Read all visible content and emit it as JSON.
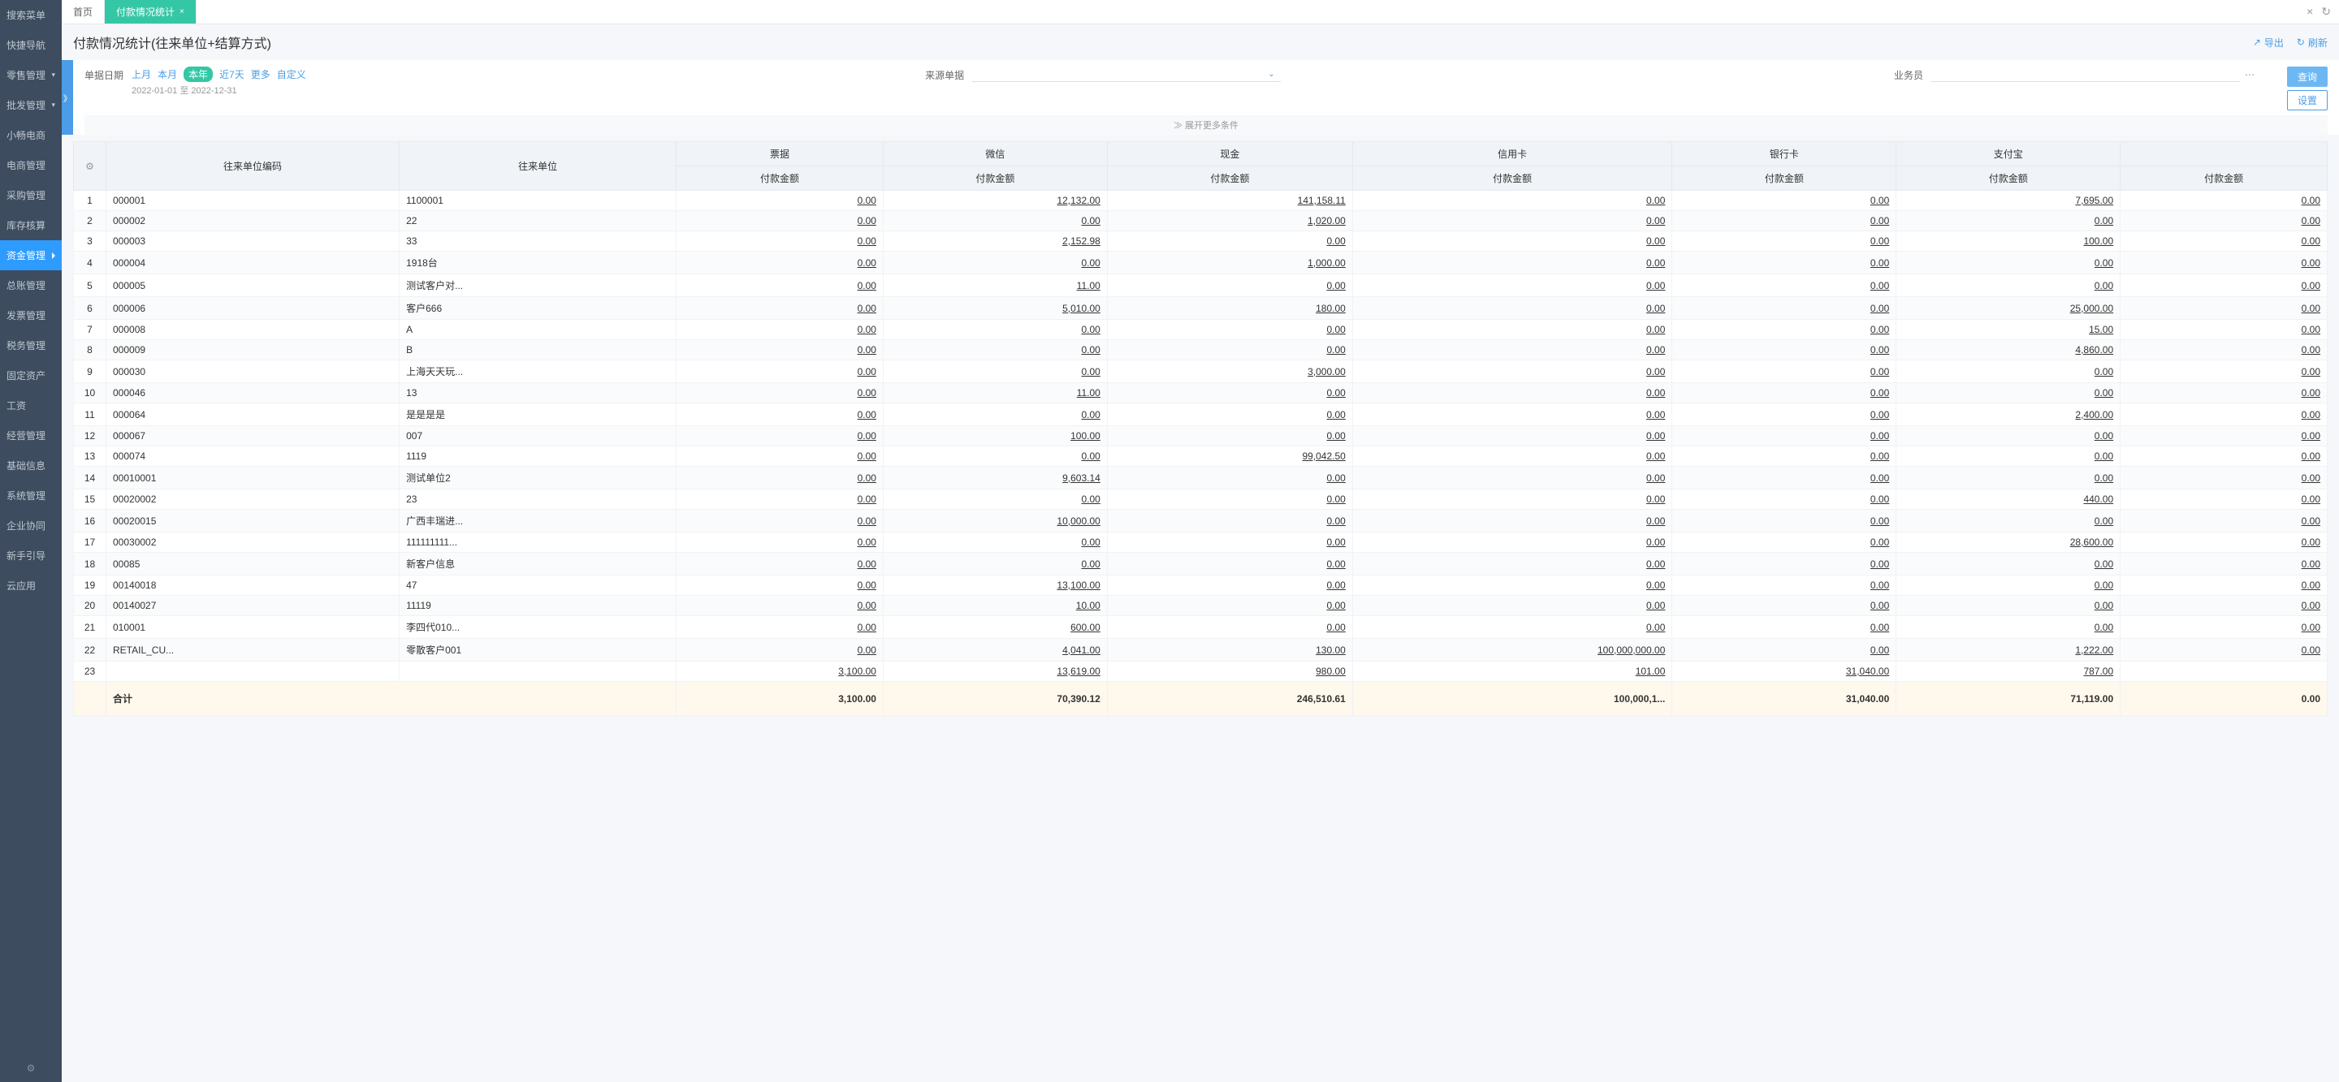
{
  "sidebar": {
    "items": [
      {
        "label": "搜索菜单",
        "arrow": false
      },
      {
        "label": "快捷导航",
        "arrow": false
      },
      {
        "label": "零售管理",
        "arrow": true
      },
      {
        "label": "批发管理",
        "arrow": true
      },
      {
        "label": "小畅电商",
        "arrow": false
      },
      {
        "label": "电商管理",
        "arrow": false
      },
      {
        "label": "采购管理",
        "arrow": false
      },
      {
        "label": "库存核算",
        "arrow": false
      },
      {
        "label": "资金管理",
        "arrow": false,
        "active": true
      },
      {
        "label": "总账管理",
        "arrow": false
      },
      {
        "label": "发票管理",
        "arrow": false
      },
      {
        "label": "税务管理",
        "arrow": false
      },
      {
        "label": "固定资产",
        "arrow": false
      },
      {
        "label": "工资",
        "arrow": false
      },
      {
        "label": "经营管理",
        "arrow": false
      },
      {
        "label": "基础信息",
        "arrow": false
      },
      {
        "label": "系统管理",
        "arrow": false
      },
      {
        "label": "企业协同",
        "arrow": false
      },
      {
        "label": "新手引导",
        "arrow": false
      },
      {
        "label": "云应用",
        "arrow": false
      }
    ]
  },
  "tabs": {
    "items": [
      {
        "label": "首页",
        "active": false,
        "closable": false
      },
      {
        "label": "付款情况统计",
        "active": true,
        "closable": true
      }
    ]
  },
  "page": {
    "title": "付款情况统计(往来单位+结算方式)",
    "export_label": "导出",
    "refresh_label": "刷新"
  },
  "filters": {
    "date_label": "单据日期",
    "shortcuts": [
      "上月",
      "本月",
      "本年",
      "近7天",
      "更多",
      "自定义"
    ],
    "active_shortcut": 2,
    "date_range": "2022-01-01 至 2022-12-31",
    "source_label": "来源单据",
    "clerk_label": "业务员",
    "query_btn": "查询",
    "settings_btn": "设置",
    "expand_label": "展开更多条件"
  },
  "table": {
    "group_headers": [
      "票据",
      "微信",
      "现金",
      "信用卡",
      "银行卡",
      "支付宝",
      ""
    ],
    "sub_header": "付款金额",
    "headers": {
      "code": "往来单位编码",
      "name": "往来单位"
    },
    "rows": [
      {
        "idx": "1",
        "code": "000001",
        "name": "1100001",
        "v": [
          "0.00",
          "12,132.00",
          "141,158.11",
          "0.00",
          "0.00",
          "7,695.00",
          "0.00"
        ]
      },
      {
        "idx": "2",
        "code": "000002",
        "name": "22",
        "v": [
          "0.00",
          "0.00",
          "1,020.00",
          "0.00",
          "0.00",
          "0.00",
          "0.00"
        ]
      },
      {
        "idx": "3",
        "code": "000003",
        "name": "33",
        "v": [
          "0.00",
          "2,152.98",
          "0.00",
          "0.00",
          "0.00",
          "100.00",
          "0.00"
        ]
      },
      {
        "idx": "4",
        "code": "000004",
        "name": "1918台",
        "v": [
          "0.00",
          "0.00",
          "1,000.00",
          "0.00",
          "0.00",
          "0.00",
          "0.00"
        ]
      },
      {
        "idx": "5",
        "code": "000005",
        "name": "测试客户对...",
        "v": [
          "0.00",
          "11.00",
          "0.00",
          "0.00",
          "0.00",
          "0.00",
          "0.00"
        ]
      },
      {
        "idx": "6",
        "code": "000006",
        "name": "客户666",
        "v": [
          "0.00",
          "5,010.00",
          "180.00",
          "0.00",
          "0.00",
          "25,000.00",
          "0.00"
        ]
      },
      {
        "idx": "7",
        "code": "000008",
        "name": "A",
        "v": [
          "0.00",
          "0.00",
          "0.00",
          "0.00",
          "0.00",
          "15.00",
          "0.00"
        ]
      },
      {
        "idx": "8",
        "code": "000009",
        "name": "B",
        "v": [
          "0.00",
          "0.00",
          "0.00",
          "0.00",
          "0.00",
          "4,860.00",
          "0.00"
        ]
      },
      {
        "idx": "9",
        "code": "000030",
        "name": "上海天天玩...",
        "v": [
          "0.00",
          "0.00",
          "3,000.00",
          "0.00",
          "0.00",
          "0.00",
          "0.00"
        ]
      },
      {
        "idx": "10",
        "code": "000046",
        "name": "13",
        "v": [
          "0.00",
          "11.00",
          "0.00",
          "0.00",
          "0.00",
          "0.00",
          "0.00"
        ]
      },
      {
        "idx": "11",
        "code": "000064",
        "name": "是是是是",
        "v": [
          "0.00",
          "0.00",
          "0.00",
          "0.00",
          "0.00",
          "2,400.00",
          "0.00"
        ]
      },
      {
        "idx": "12",
        "code": "000067",
        "name": "007",
        "v": [
          "0.00",
          "100.00",
          "0.00",
          "0.00",
          "0.00",
          "0.00",
          "0.00"
        ]
      },
      {
        "idx": "13",
        "code": "000074",
        "name": "1119",
        "v": [
          "0.00",
          "0.00",
          "99,042.50",
          "0.00",
          "0.00",
          "0.00",
          "0.00"
        ]
      },
      {
        "idx": "14",
        "code": "00010001",
        "name": "测试单位2",
        "v": [
          "0.00",
          "9,603.14",
          "0.00",
          "0.00",
          "0.00",
          "0.00",
          "0.00"
        ]
      },
      {
        "idx": "15",
        "code": "00020002",
        "name": "23",
        "v": [
          "0.00",
          "0.00",
          "0.00",
          "0.00",
          "0.00",
          "440.00",
          "0.00"
        ]
      },
      {
        "idx": "16",
        "code": "00020015",
        "name": "广西丰瑞进...",
        "v": [
          "0.00",
          "10,000.00",
          "0.00",
          "0.00",
          "0.00",
          "0.00",
          "0.00"
        ]
      },
      {
        "idx": "17",
        "code": "00030002",
        "name": "111111111...",
        "v": [
          "0.00",
          "0.00",
          "0.00",
          "0.00",
          "0.00",
          "28,600.00",
          "0.00"
        ]
      },
      {
        "idx": "18",
        "code": "00085",
        "name": "新客户信息",
        "v": [
          "0.00",
          "0.00",
          "0.00",
          "0.00",
          "0.00",
          "0.00",
          "0.00"
        ]
      },
      {
        "idx": "19",
        "code": "00140018",
        "name": "47",
        "v": [
          "0.00",
          "13,100.00",
          "0.00",
          "0.00",
          "0.00",
          "0.00",
          "0.00"
        ]
      },
      {
        "idx": "20",
        "code": "00140027",
        "name": "11119",
        "v": [
          "0.00",
          "10.00",
          "0.00",
          "0.00",
          "0.00",
          "0.00",
          "0.00"
        ]
      },
      {
        "idx": "21",
        "code": "010001",
        "name": "李四代010...",
        "v": [
          "0.00",
          "600.00",
          "0.00",
          "0.00",
          "0.00",
          "0.00",
          "0.00"
        ]
      },
      {
        "idx": "22",
        "code": "RETAIL_CU...",
        "name": "零散客户001",
        "v": [
          "0.00",
          "4,041.00",
          "130.00",
          "100,000,000.00",
          "0.00",
          "1,222.00",
          "0.00"
        ]
      },
      {
        "idx": "23",
        "code": "",
        "name": "",
        "v": [
          "3,100.00",
          "13,619.00",
          "980.00",
          "101.00",
          "31,040.00",
          "787.00",
          ""
        ]
      }
    ],
    "totals": {
      "label": "合计",
      "v": [
        "3,100.00",
        "70,390.12",
        "246,510.61",
        "100,000,1...",
        "31,040.00",
        "71,119.00",
        "0.00"
      ]
    }
  }
}
